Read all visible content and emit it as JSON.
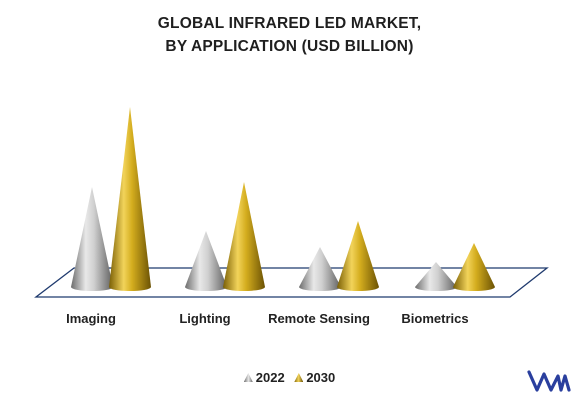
{
  "chart_data": {
    "type": "bar",
    "title_lines": [
      "GLOBAL INFRARED LED MARKET,",
      "BY APPLICATION (USD BILLION)"
    ],
    "categories": [
      "Imaging",
      "Lighting",
      "Remote Sensing",
      "Biometrics"
    ],
    "series": [
      {
        "name": "2022",
        "values": [
          1.0,
          0.56,
          0.4,
          0.25
        ],
        "color": "#a6a6a6"
      },
      {
        "name": "2030",
        "values": [
          1.8,
          1.05,
          0.66,
          0.44
        ],
        "color": "#b8940e"
      }
    ],
    "ylim": [
      0,
      1.8
    ],
    "legend_position": "bottom",
    "grid": false,
    "floor_color": "#1f3a6e"
  },
  "logo": {
    "icon": "brand-logo-icon",
    "color": "#2a3f9e"
  }
}
